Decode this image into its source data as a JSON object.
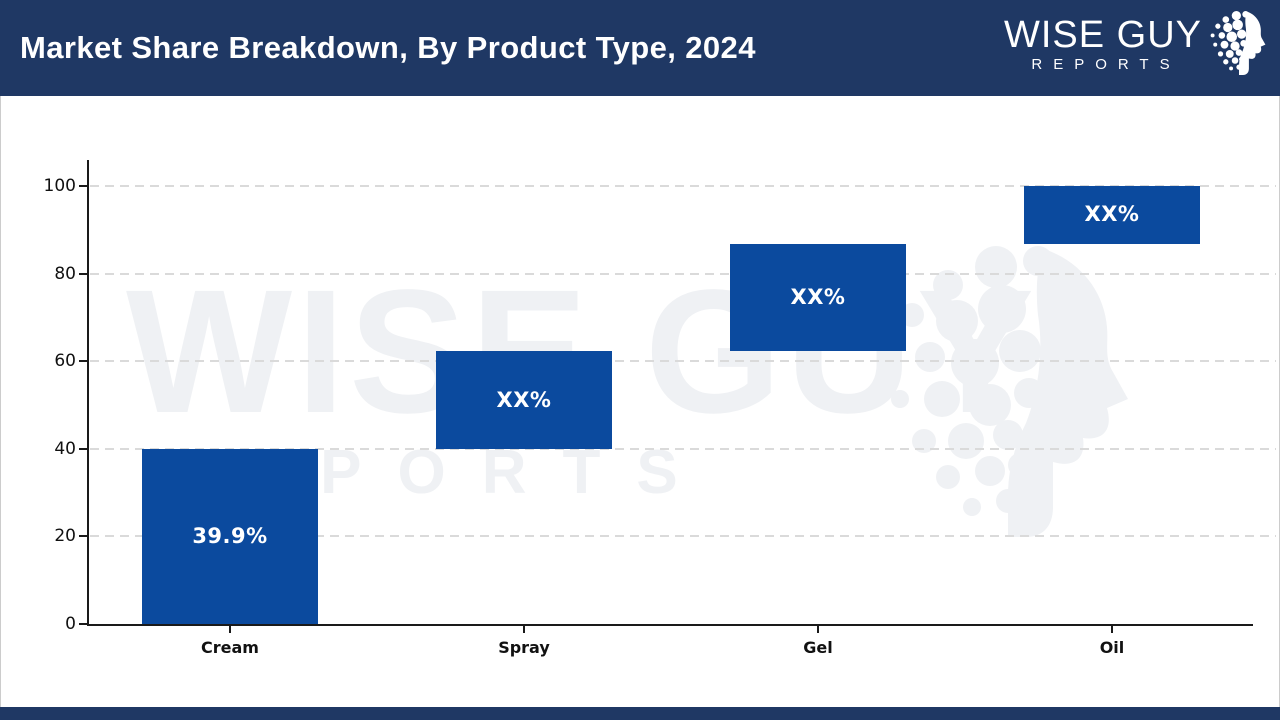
{
  "header": {
    "title": "Market Share Breakdown, By Product Type, 2024",
    "logo": {
      "line1": "WISE GUY",
      "line2": "REPORTS"
    }
  },
  "watermark": {
    "line1": "WISE GUY",
    "line2": "REPORTS"
  },
  "chart_data": {
    "type": "bar",
    "subtype": "waterfall",
    "title": "Market Share Breakdown, By Product Type, 2024",
    "categories": [
      "Cream",
      "Spray",
      "Gel",
      "Oil"
    ],
    "segments": [
      {
        "category": "Cream",
        "start": 0,
        "end": 39.9,
        "label": "39.9%"
      },
      {
        "category": "Spray",
        "start": 39.9,
        "end": 62.3,
        "label": "XX%"
      },
      {
        "category": "Gel",
        "start": 62.3,
        "end": 86.8,
        "label": "XX%"
      },
      {
        "category": "Oil",
        "start": 86.8,
        "end": 100,
        "label": "XX%"
      }
    ],
    "values_shown": [
      "39.9%",
      "XX%",
      "XX%",
      "XX%"
    ],
    "xlabel": "",
    "ylabel": "",
    "ylim": [
      0,
      100
    ],
    "yticks": [
      0,
      20,
      40,
      60,
      80,
      100
    ],
    "grid": "horizontal-dashed",
    "legend_position": "none",
    "bar_color": "#0b4a9e",
    "bar_label_color": "#ffffff"
  },
  "colors": {
    "header_bg": "#1f3864",
    "footer_bg": "#1f3864",
    "canvas_bg": "#ffffff",
    "watermark": "#eff1f4",
    "gridline": "#dadada",
    "axis": "#1a1a1a"
  }
}
